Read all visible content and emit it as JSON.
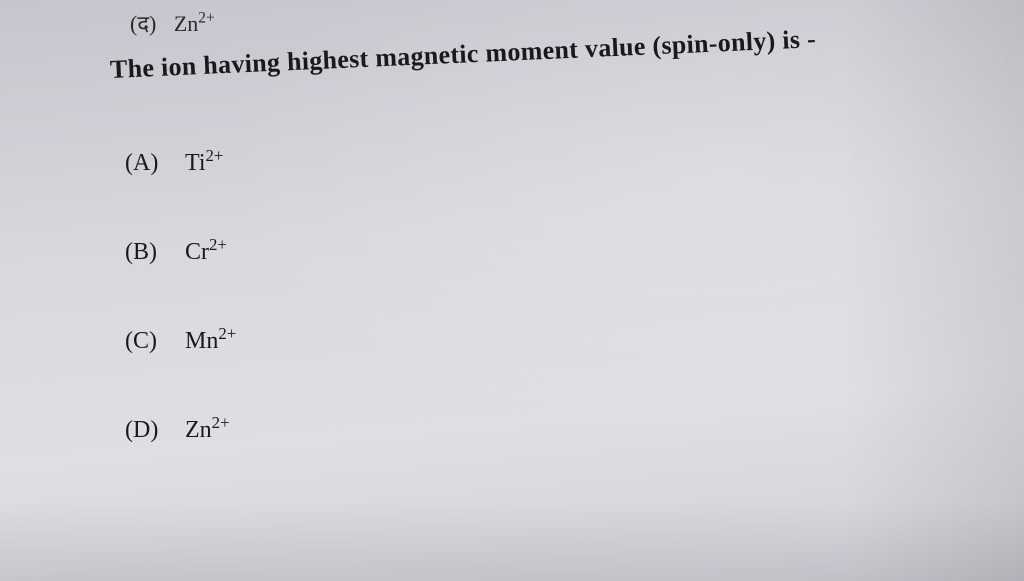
{
  "partial": {
    "label": "(द)",
    "value": "Zn",
    "superscript": "2+"
  },
  "question": {
    "text": "The ion having highest magnetic moment value (spin-only) is -"
  },
  "options": [
    {
      "label": "(A)",
      "element": "Ti",
      "superscript": "2+"
    },
    {
      "label": "(B)",
      "element": "Cr",
      "superscript": "2+"
    },
    {
      "label": "(C)",
      "element": "Mn",
      "superscript": "2+"
    },
    {
      "label": "(D)",
      "element": "Zn",
      "superscript": "2+"
    }
  ],
  "styling": {
    "background_gradient_start": "#c5c5cd",
    "background_gradient_end": "#d0d0d8",
    "text_color": "#1a1a1a",
    "question_fontsize": 26,
    "option_fontsize": 24,
    "option_spacing": 62,
    "question_rotation_deg": -2.5,
    "font_family": "Georgia, Times New Roman, serif"
  }
}
